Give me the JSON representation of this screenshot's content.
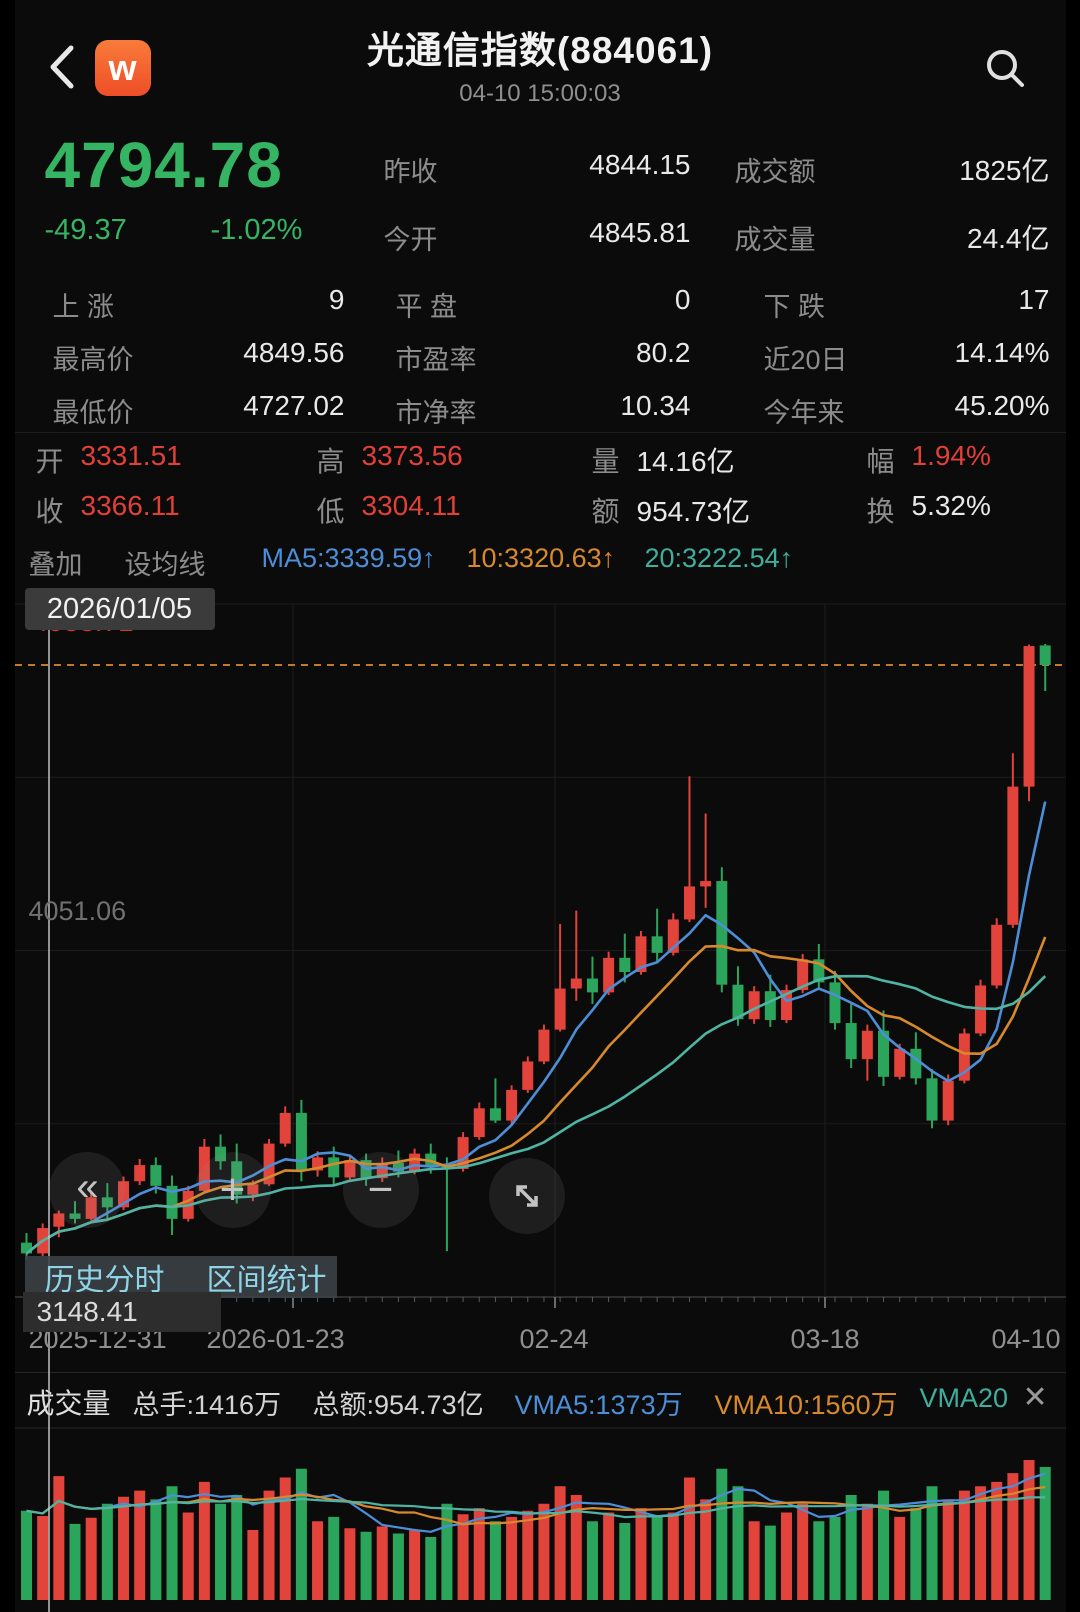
{
  "header": {
    "title": "光通信指数(884061)",
    "time": "04-10 15:00:03",
    "logo_letter": "w"
  },
  "price": {
    "last": "4794.78",
    "change": "-49.37",
    "change_pct": "-1.02%"
  },
  "quote_grid": {
    "r1c1_label": "昨收",
    "r1c1_value": "4844.15",
    "r1c2_label": "成交额",
    "r1c2_value": "1825亿",
    "r2c1_label": "今开",
    "r2c1_value": "4845.81",
    "r2c2_label": "成交量",
    "r2c2_value": "24.4亿",
    "r3": [
      {
        "label": "上 涨",
        "value": "9"
      },
      {
        "label": "平 盘",
        "value": "0"
      },
      {
        "label": "下 跌",
        "value": "17"
      }
    ],
    "r4": [
      {
        "label": "最高价",
        "value": "4849.56"
      },
      {
        "label": "市盈率",
        "value": "80.2"
      },
      {
        "label": "近20日",
        "value": "14.14%"
      }
    ],
    "r5": [
      {
        "label": "最低价",
        "value": "4727.02"
      },
      {
        "label": "市净率",
        "value": "10.34"
      },
      {
        "label": "今年来",
        "value": "45.20%"
      }
    ]
  },
  "ohlc_panel": {
    "row1": [
      {
        "label": "开",
        "value": "3331.51"
      },
      {
        "label": "高",
        "value": "3373.56"
      },
      {
        "label": "量",
        "value": "14.16亿"
      },
      {
        "label": "幅",
        "value": "1.94%"
      }
    ],
    "row2": [
      {
        "label": "收",
        "value": "3366.11"
      },
      {
        "label": "低",
        "value": "3304.11"
      },
      {
        "label": "额",
        "value": "954.73亿"
      },
      {
        "label": "换",
        "value": "5.32%"
      }
    ]
  },
  "ma_bar": {
    "overlay": "叠加",
    "set_ma": "设均线",
    "ma5": "MA5:3339.59↑",
    "ma10": "10:3320.63↑",
    "ma20": "20:3222.54↑"
  },
  "chart_overlay": {
    "tooltip_date": "2026/01/05",
    "max_label": "4953.71",
    "mid_label": "4051.06",
    "min_label": "3148.41",
    "tab_history": "历史分时",
    "tab_range": "区间统计"
  },
  "controls": {
    "rewind": "«",
    "zoom_in": "+",
    "zoom_out": "−",
    "close": "✕"
  },
  "volume_header": {
    "title": "成交量",
    "total_hands": "总手:1416万",
    "total_amount": "总额:954.73亿",
    "vma5": "VMA5:1373万",
    "vma10": "VMA10:1560万",
    "vma20": "VMA20"
  },
  "chart_data": {
    "type": "candlestick",
    "title": "光通信指数(884061) 日K",
    "y_axis": {
      "max": 4953.71,
      "mid": 4051.06,
      "min": 3148.41
    },
    "y_grid_labels": [
      "4953.71",
      "4051.06",
      "3148.41"
    ],
    "dashed_line_value": 4794.78,
    "x_ticks": [
      "2025-12-31",
      "2026-01-23",
      "02-24",
      "03-18",
      "04-10"
    ],
    "crosshair": {
      "date": "2026/01/05",
      "x": 33,
      "open": 3331.51,
      "high": 3373.56,
      "low": 3304.11,
      "close": 3366.11,
      "volume_wan": 1416
    },
    "ma_periods": [
      5,
      10,
      20
    ],
    "ma_colors": {
      "ma5": "#4d8ed8",
      "ma10": "#d8892c",
      "ma20": "#4fb4a4"
    },
    "candle_colors": {
      "up": "#e2433b",
      "down": "#2ba55b"
    },
    "volume_max_wan": 1600,
    "candles": [
      [
        3290,
        3315,
        3245,
        3262,
        1020
      ],
      [
        3262,
        3340,
        3255,
        3328,
        960
      ],
      [
        3331.51,
        3373.56,
        3304.11,
        3366.11,
        1416
      ],
      [
        3366,
        3398,
        3340,
        3352,
        870
      ],
      [
        3352,
        3420,
        3348,
        3408,
        940
      ],
      [
        3408,
        3445,
        3352,
        3382,
        1100
      ],
      [
        3382,
        3462,
        3375,
        3450,
        1180
      ],
      [
        3450,
        3508,
        3440,
        3492,
        1250
      ],
      [
        3492,
        3512,
        3418,
        3438,
        1150
      ],
      [
        3438,
        3465,
        3310,
        3352,
        1300
      ],
      [
        3352,
        3438,
        3345,
        3425,
        1000
      ],
      [
        3425,
        3560,
        3420,
        3540,
        1350
      ],
      [
        3540,
        3572,
        3480,
        3502,
        1100
      ],
      [
        3502,
        3548,
        3392,
        3415,
        1200
      ],
      [
        3415,
        3452,
        3398,
        3442,
        800
      ],
      [
        3442,
        3560,
        3438,
        3548,
        1250
      ],
      [
        3548,
        3645,
        3540,
        3628,
        1400
      ],
      [
        3628,
        3662,
        3450,
        3478,
        1500
      ],
      [
        3478,
        3528,
        3462,
        3512,
        900
      ],
      [
        3512,
        3540,
        3438,
        3460,
        950
      ],
      [
        3460,
        3518,
        3452,
        3505,
        820
      ],
      [
        3505,
        3522,
        3438,
        3458,
        780
      ],
      [
        3458,
        3512,
        3448,
        3498,
        840
      ],
      [
        3498,
        3530,
        3460,
        3475,
        760
      ],
      [
        3475,
        3535,
        3468,
        3522,
        800
      ],
      [
        3522,
        3548,
        3470,
        3490,
        720
      ],
      [
        3490,
        3512,
        3268,
        3482,
        1100
      ],
      [
        3482,
        3578,
        3475,
        3565,
        980
      ],
      [
        3565,
        3655,
        3558,
        3640,
        1050
      ],
      [
        3640,
        3718,
        3602,
        3608,
        900
      ],
      [
        3608,
        3700,
        3600,
        3688,
        950
      ],
      [
        3688,
        3775,
        3680,
        3762,
        1020
      ],
      [
        3762,
        3858,
        3755,
        3845,
        1100
      ],
      [
        3845,
        4120,
        3840,
        3952,
        1300
      ],
      [
        3952,
        4155,
        3920,
        3978,
        1200
      ],
      [
        3978,
        4035,
        3912,
        3942,
        900
      ],
      [
        3942,
        4048,
        3935,
        4032,
        1000
      ],
      [
        4032,
        4095,
        3968,
        3995,
        880
      ],
      [
        3995,
        4102,
        3988,
        4088,
        1050
      ],
      [
        4088,
        4160,
        4020,
        4045,
        950
      ],
      [
        4045,
        4148,
        4038,
        4132,
        1000
      ],
      [
        4132,
        4505,
        4125,
        4218,
        1400
      ],
      [
        4218,
        4408,
        4162,
        4232,
        1150
      ],
      [
        4232,
        4268,
        3942,
        3962,
        1500
      ],
      [
        3962,
        4010,
        3855,
        3872,
        1300
      ],
      [
        3872,
        3958,
        3860,
        3945,
        900
      ],
      [
        3945,
        3988,
        3852,
        3870,
        850
      ],
      [
        3870,
        3962,
        3862,
        3948,
        1000
      ],
      [
        3948,
        4042,
        3940,
        4028,
        1100
      ],
      [
        4028,
        4068,
        3948,
        3968,
        900
      ],
      [
        3968,
        3998,
        3845,
        3862,
        950
      ],
      [
        3862,
        3912,
        3745,
        3768,
        1200
      ],
      [
        3768,
        3858,
        3712,
        3842,
        1100
      ],
      [
        3842,
        3895,
        3698,
        3722,
        1250
      ],
      [
        3722,
        3808,
        3715,
        3795,
        950
      ],
      [
        3795,
        3838,
        3702,
        3718,
        1050
      ],
      [
        3718,
        3742,
        3588,
        3608,
        1300
      ],
      [
        3608,
        3728,
        3596,
        3712,
        1150
      ],
      [
        3712,
        3848,
        3705,
        3835,
        1250
      ],
      [
        3835,
        3975,
        3828,
        3960,
        1300
      ],
      [
        3960,
        4135,
        3952,
        4118,
        1350
      ],
      [
        4118,
        4565,
        4110,
        4478,
        1450
      ],
      [
        4478,
        4848,
        4440,
        4844.15,
        1600
      ],
      [
        4845.81,
        4849.56,
        4727.02,
        4794.78,
        1520
      ]
    ]
  }
}
